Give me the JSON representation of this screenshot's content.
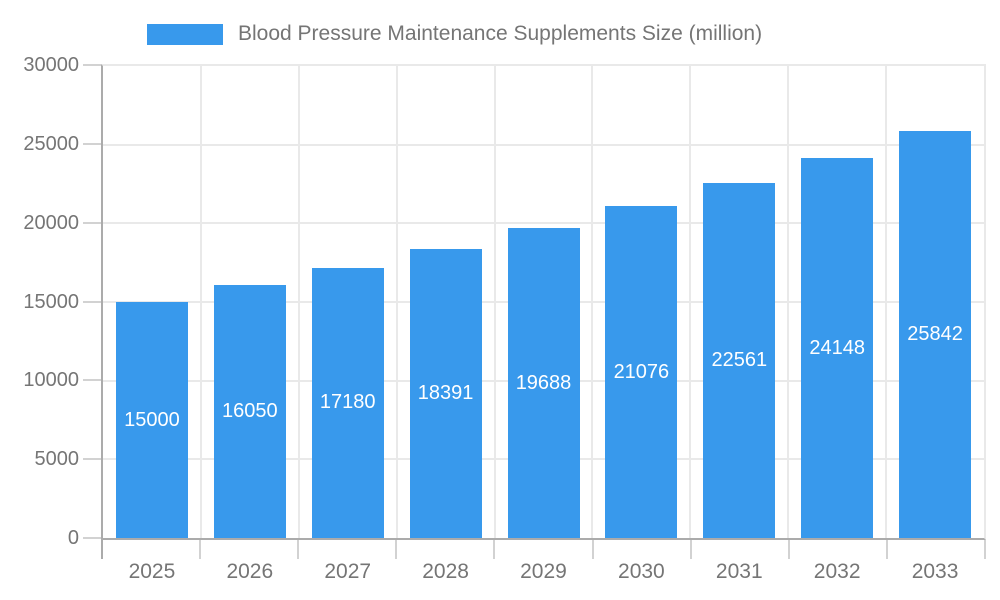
{
  "chart_data": {
    "type": "bar",
    "title": "Blood Pressure Maintenance Supplements Size (million)",
    "categories": [
      "2025",
      "2026",
      "2027",
      "2028",
      "2029",
      "2030",
      "2031",
      "2032",
      "2033"
    ],
    "series": [
      {
        "name": "Blood Pressure Maintenance Supplements Size (million)",
        "values": [
          15000,
          16050,
          17180,
          18391,
          19688,
          21076,
          22561,
          24148,
          25842
        ]
      }
    ],
    "xlabel": "",
    "ylabel": "",
    "ylim": [
      0,
      30000
    ],
    "yticks": [
      0,
      5000,
      10000,
      15000,
      20000,
      25000,
      30000
    ],
    "bar_labels": [
      "15000",
      "16050",
      "17180",
      "18391",
      "19688",
      "21076",
      "22561",
      "24148",
      "25842"
    ],
    "grid": "horizontal and vertical, boxed plot area",
    "legend_position": "top-center",
    "colors": {
      "bar": "#3899EC",
      "bar_label_text": "#ffffff",
      "axis_text": "#757575",
      "axis_line": "#ababab",
      "gridline": "#e9e9e9",
      "tick": "#d2d2d2",
      "background": "#ffffff"
    }
  }
}
